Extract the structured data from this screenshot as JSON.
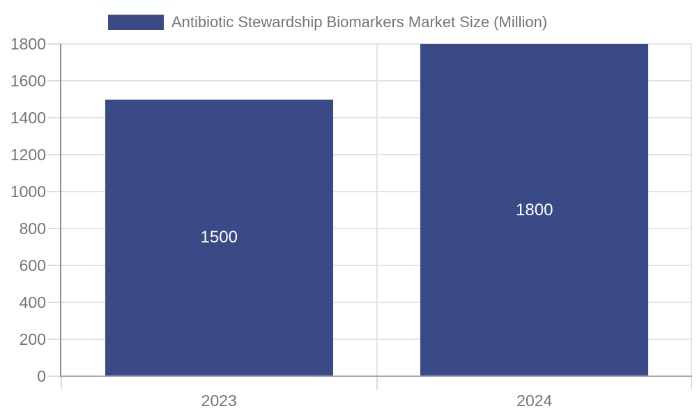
{
  "legend": {
    "label": "Antibiotic Stewardship Biomarkers Market Size (Million)"
  },
  "chart_data": {
    "type": "bar",
    "title": "",
    "categories": [
      "2023",
      "2024"
    ],
    "series": [
      {
        "name": "Antibiotic Stewardship Biomarkers Market Size (Million)",
        "values": [
          1500,
          1800
        ]
      }
    ],
    "bar_labels": [
      "1500",
      "1800"
    ],
    "xlabel": "",
    "ylabel": "",
    "ylim": [
      0,
      1800
    ],
    "yticks": [
      0,
      200,
      400,
      600,
      800,
      1000,
      1200,
      1400,
      1600,
      1800
    ],
    "grid": true,
    "legend_position": "top",
    "colors": {
      "bar": "#3A4A87",
      "bar_label": "#FFFFFF",
      "grid": "#E3E3E3",
      "y_axis": "#8F8F8F",
      "x_axis": "#A8A8A8",
      "axis_tick": "#DCDCDC",
      "tick_label": "#757575",
      "legend_text": "#757575",
      "background": "#FFFFFF"
    }
  }
}
